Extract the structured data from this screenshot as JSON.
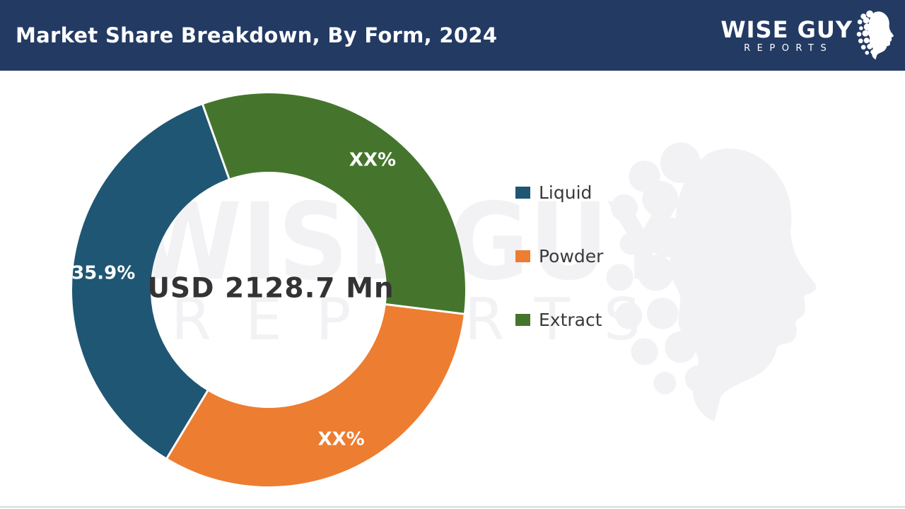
{
  "header": {
    "title": "Market Share Breakdown, By Form, 2024",
    "background_color": "#233a63",
    "logo": {
      "wordmark": "WISE GUY",
      "subtext": "REPORTS"
    }
  },
  "watermark": {
    "wordmark": "WISE GUY",
    "subtext": "REPORTS",
    "color": "#f2f2f5"
  },
  "chart_data": {
    "type": "pie",
    "subtype": "donut",
    "title": "Market Share Breakdown, By Form, 2024",
    "center_label": "USD 2128.7 Mn",
    "legend_position": "right",
    "direction": "clockwise",
    "start_angle_deg": -19.6,
    "draw_order": [
      2,
      1,
      0
    ],
    "inner_radius_ratio": 0.6,
    "series": [
      {
        "name": "Liquid",
        "value": 35.9,
        "label": "35.9%",
        "color": "#1f5673"
      },
      {
        "name": "Powder",
        "value": 31.7,
        "label": "XX%",
        "color": "#ed7d31"
      },
      {
        "name": "Extract",
        "value": 32.4,
        "label": "XX%",
        "color": "#45752d"
      }
    ],
    "values_estimated_from_arc_angles": [
      "Powder",
      "Extract"
    ]
  }
}
